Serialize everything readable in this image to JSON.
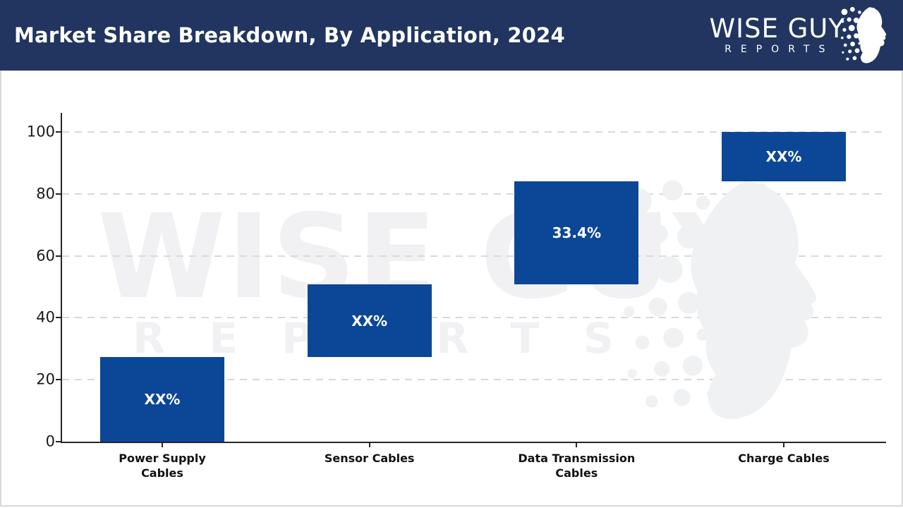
{
  "header": {
    "title": "Market Share Breakdown, By Application, 2024",
    "logo": {
      "name": "WISE GUY",
      "subname": "REPORTS",
      "icon": "head-profile-dots-icon"
    }
  },
  "watermark": {
    "name": "WISE GUY",
    "subname": "REPORTS",
    "icon": "head-profile-dots-icon"
  },
  "chart_data": {
    "type": "bar",
    "subtype": "floating-waterfall",
    "title": "Market Share Breakdown, By Application, 2024",
    "categories": [
      "Power Supply Cables",
      "Sensor Cables",
      "Data Transmission Cables",
      "Charge Cables"
    ],
    "bars": [
      {
        "category": "Power Supply Cables",
        "start": 0,
        "end": 27.3,
        "label": "XX%"
      },
      {
        "category": "Sensor Cables",
        "start": 27.3,
        "end": 50.7,
        "label": "XX%"
      },
      {
        "category": "Data Transmission Cables",
        "start": 50.7,
        "end": 84.1,
        "label": "33.4%"
      },
      {
        "category": "Charge Cables",
        "start": 84.1,
        "end": 100,
        "label": "XX%"
      }
    ],
    "xlabel": "",
    "ylabel": "",
    "ylim": [
      0,
      100
    ],
    "yticks": [
      0,
      20,
      40,
      60,
      80,
      100
    ],
    "grid": {
      "axis": "y",
      "style": "dashed",
      "color": "#d9d9d9"
    },
    "legend": "none",
    "bar_color": "#0b4796"
  },
  "colors": {
    "header_bg": "#213560",
    "bar": "#0b4796",
    "axis": "#262626",
    "grid": "#d9d9d9",
    "watermark": "#f1f1f3",
    "frame_border": "#d9d9d9",
    "title_text": "#ffffff"
  }
}
